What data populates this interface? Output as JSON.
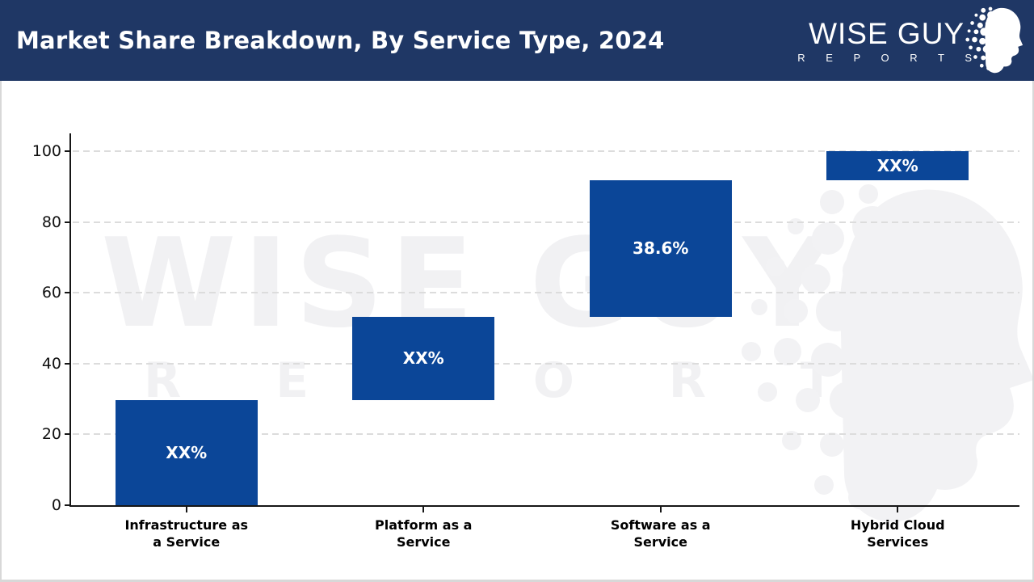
{
  "header": {
    "title": "Market Share Breakdown, By Service Type, 2024",
    "logo": {
      "line1": "WISE GUY",
      "line2": "R E P O R T S"
    }
  },
  "watermark": {
    "line1": "WISE GUY",
    "line2": "R E P O R T S"
  },
  "colors": {
    "header_bg": "#1f3765",
    "bar": "#0b4698",
    "grid": "#dcdcdc",
    "axis": "#161616",
    "watermark": "#f1f1f3"
  },
  "chart_data": {
    "type": "bar",
    "subtype": "waterfall",
    "title": "Market Share Breakdown, By Service Type, 2024",
    "categories": [
      "Infrastructure as\na Service",
      "Platform as a\nService",
      "Software as a\nService",
      "Hybrid Cloud\nServices"
    ],
    "bars": [
      {
        "category": "Infrastructure as a Service",
        "label": "XX%",
        "start": 0,
        "end": 29.7
      },
      {
        "category": "Platform as a Service",
        "label": "XX%",
        "start": 29.7,
        "end": 53.2
      },
      {
        "category": "Software as a Service",
        "label": "38.6%",
        "value": 38.6,
        "start": 53.2,
        "end": 91.8
      },
      {
        "category": "Hybrid Cloud Services",
        "label": "XX%",
        "start": 91.8,
        "end": 100
      }
    ],
    "yticks": [
      0,
      20,
      40,
      60,
      80,
      100
    ],
    "ylim": [
      0,
      105
    ],
    "xlabel": "",
    "ylabel": "",
    "grid": "horizontal-dashed",
    "legend": "none"
  }
}
